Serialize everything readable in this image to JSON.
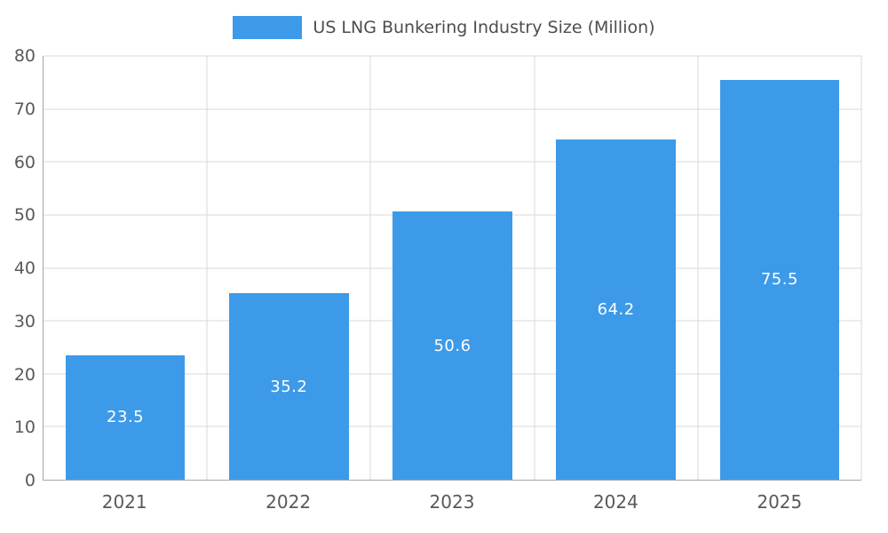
{
  "chart_data": {
    "type": "bar",
    "title": "US LNG Bunkering Industry Size (Million)",
    "categories": [
      "2021",
      "2022",
      "2023",
      "2024",
      "2025"
    ],
    "values": [
      23.5,
      35.2,
      50.6,
      64.2,
      75.5
    ],
    "value_labels": [
      "23.5",
      "35.2",
      "50.6",
      "64.2",
      "75.5"
    ],
    "xlabel": "",
    "ylabel": "",
    "ylim": [
      0,
      80
    ],
    "yticks": [
      0,
      10,
      20,
      30,
      40,
      50,
      60,
      70,
      80
    ],
    "grid": true,
    "legend_position": "top-center",
    "colors": {
      "bar": "#3d9ae8",
      "value_label": "#ffffff",
      "axis_text": "#595959",
      "gridline": "#d9d9d9",
      "axis_line": "#a6a6a6",
      "background": "#ffffff"
    }
  }
}
